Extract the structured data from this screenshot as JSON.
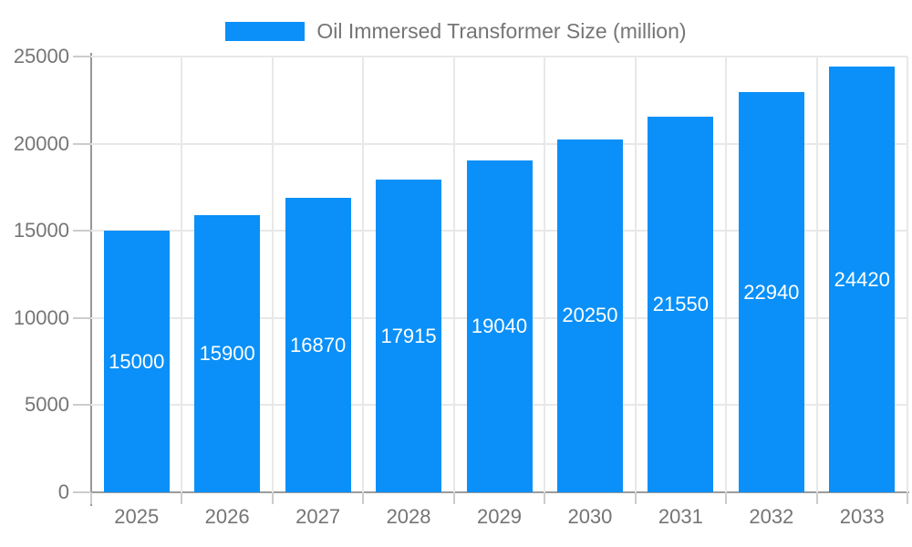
{
  "chart_data": {
    "type": "bar",
    "title": "Oil Immersed Transformer Size (million)",
    "categories": [
      "2025",
      "2026",
      "2027",
      "2028",
      "2029",
      "2030",
      "2031",
      "2032",
      "2033"
    ],
    "values": [
      15000,
      15900,
      16870,
      17915,
      19040,
      20250,
      21550,
      22940,
      24420
    ],
    "value_labels": [
      "15000",
      "15900",
      "16870",
      "17915",
      "19040",
      "20250",
      "21550",
      "22940",
      "24420"
    ],
    "xlabel": "",
    "ylabel": "",
    "ylim": [
      0,
      25000
    ],
    "yticks": [
      0,
      5000,
      10000,
      15000,
      20000,
      25000
    ],
    "ytick_labels": [
      "0",
      "5000",
      "10000",
      "15000",
      "20000",
      "25000"
    ],
    "grid": true,
    "legend_position": "top-center",
    "colors": {
      "bar": "#0a90f8",
      "bar_label": "#ffffff",
      "axis_text": "#757575",
      "axis_line": "#9b9b9b",
      "grid_line": "#e8e8e8",
      "tick": "#cccccc",
      "background": "#ffffff"
    }
  }
}
